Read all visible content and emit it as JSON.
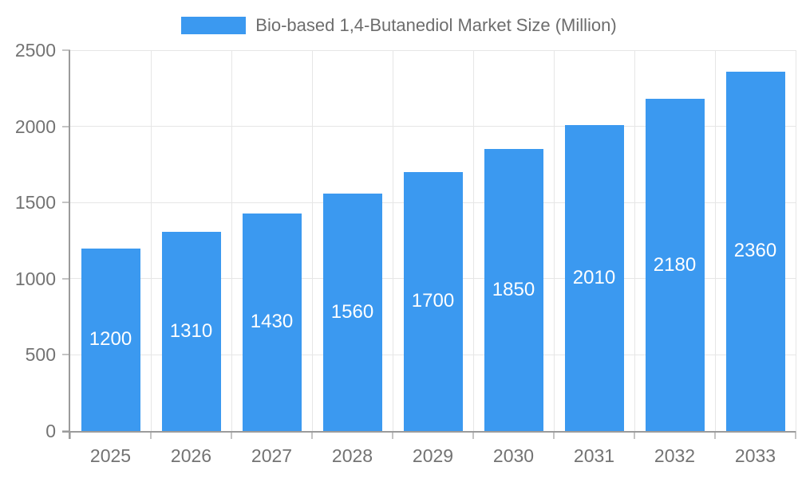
{
  "chart_data": {
    "type": "bar",
    "title": "Bio-based 1,4-Butanediol Market Size (Million)",
    "categories": [
      "2025",
      "2026",
      "2027",
      "2028",
      "2029",
      "2030",
      "2031",
      "2032",
      "2033"
    ],
    "values": [
      1200,
      1310,
      1430,
      1560,
      1700,
      1850,
      2010,
      2180,
      2360
    ],
    "xlabel": "",
    "ylabel": "",
    "ylim": [
      0,
      2500
    ],
    "yticks": [
      0,
      500,
      1000,
      1500,
      2000,
      2500
    ],
    "grid": true,
    "legend_position": "top-center",
    "value_label_position": "inside-center",
    "colors": {
      "bar": "#3b99f0",
      "bar_value_label": "#ffffff",
      "grid": "#e6e6e6",
      "axis": "#9b9b9b",
      "tick": "#c4c4c4",
      "tick_label": "#737373",
      "legend_label": "#6d6d6d",
      "background": "#ffffff"
    }
  }
}
